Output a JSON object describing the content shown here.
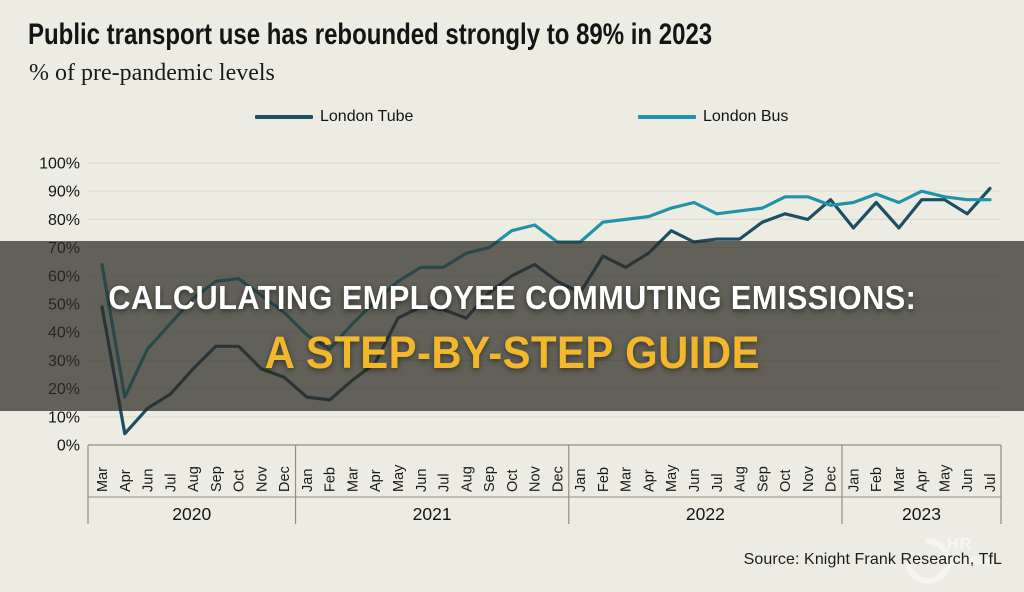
{
  "title": "Public transport use has rebounded strongly to 89% in 2023",
  "subtitle": "% of pre-pandemic levels",
  "legend": [
    {
      "label": "London Tube",
      "color": "#1d4e63"
    },
    {
      "label": "London Bus",
      "color": "#2093a8"
    }
  ],
  "overlay": {
    "line1": "CALCULATING EMPLOYEE COMMUTING EMISSIONS:",
    "line2": "A STEP-BY-STEP GUIDE",
    "heading_color": "#ffffff",
    "accent_color": "#f2b72b"
  },
  "source": "Source: Knight Frank Research, TfL",
  "watermark": "HR",
  "chart_data": {
    "type": "line",
    "title": "Public transport use has rebounded strongly to 89% in 2023",
    "ylabel": "% of pre-pandemic levels",
    "xlabel": "",
    "ylim": [
      0,
      100
    ],
    "yticks": [
      0,
      10,
      20,
      30,
      40,
      50,
      60,
      70,
      80,
      90,
      100
    ],
    "ytick_suffix": "%",
    "grid": true,
    "legend_position": "top",
    "categories": [
      "Mar",
      "Apr",
      "Jun",
      "Jul",
      "Aug",
      "Sep",
      "Oct",
      "Nov",
      "Dec",
      "Jan",
      "Feb",
      "Mar",
      "Apr",
      "May",
      "Jun",
      "Jul",
      "Aug",
      "Sep",
      "Oct",
      "Nov",
      "Dec",
      "Jan",
      "Feb",
      "Mar",
      "Apr",
      "May",
      "Jun",
      "Jul",
      "Aug",
      "Sep",
      "Oct",
      "Nov",
      "Dec",
      "Jan",
      "Feb",
      "Mar",
      "Apr",
      "May",
      "Jun",
      "Jul"
    ],
    "year_groups": [
      {
        "label": "2020",
        "count": 9
      },
      {
        "label": "2021",
        "count": 12
      },
      {
        "label": "2022",
        "count": 12
      },
      {
        "label": "2023",
        "count": 7
      }
    ],
    "series": [
      {
        "name": "London Tube",
        "color": "#1d4e63",
        "values": [
          49,
          4,
          13,
          18,
          27,
          35,
          35,
          27,
          24,
          17,
          16,
          23,
          29,
          45,
          49,
          48,
          45,
          54,
          60,
          64,
          58,
          54,
          67,
          63,
          68,
          76,
          72,
          73,
          73,
          79,
          82,
          80,
          87,
          77,
          86,
          77,
          87,
          87,
          82,
          91
        ]
      },
      {
        "name": "London Bus",
        "color": "#2093a8",
        "values": [
          64,
          17,
          34,
          43,
          52,
          58,
          59,
          53,
          47,
          39,
          34,
          43,
          51,
          58,
          63,
          63,
          68,
          70,
          76,
          78,
          72,
          72,
          79,
          80,
          81,
          84,
          86,
          82,
          83,
          84,
          88,
          88,
          85,
          86,
          89,
          86,
          90,
          88,
          87,
          87
        ]
      }
    ]
  }
}
